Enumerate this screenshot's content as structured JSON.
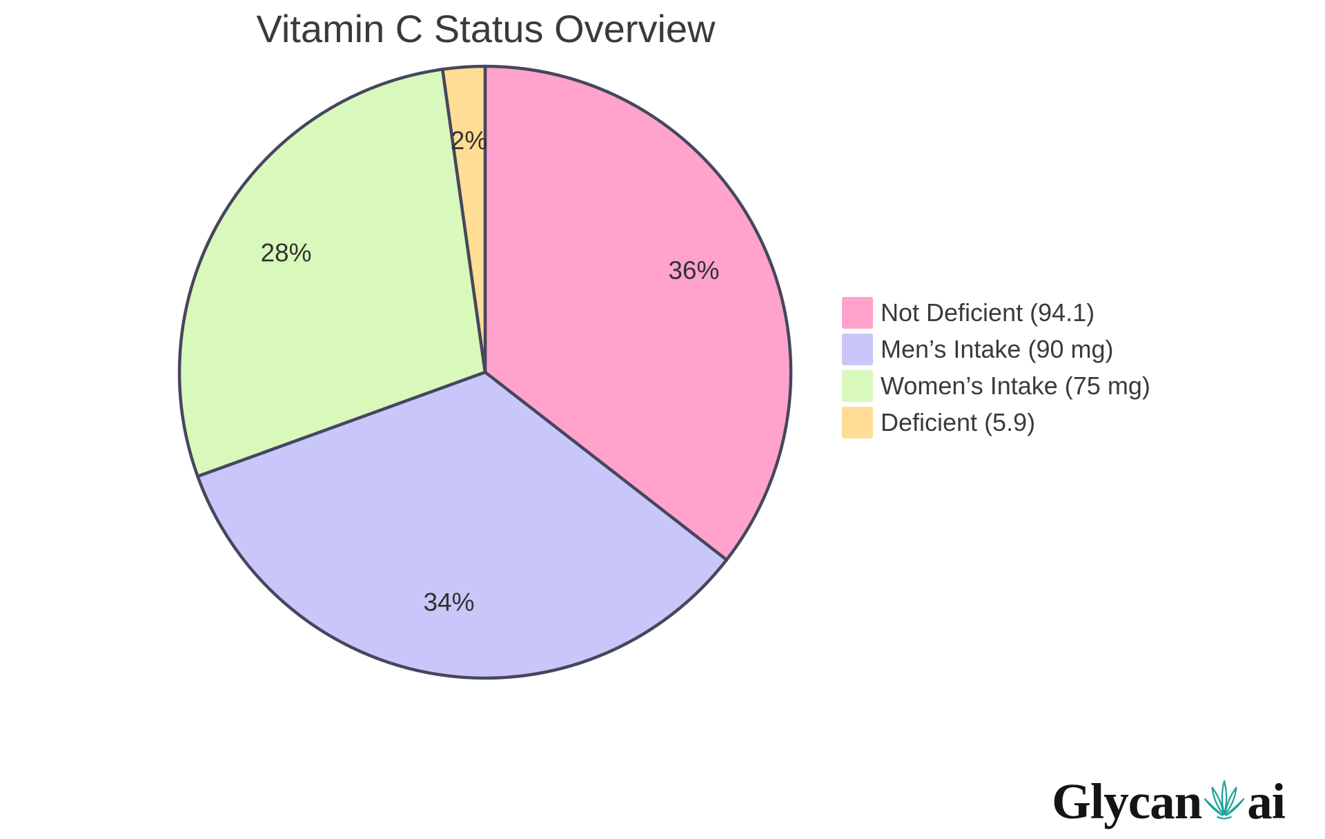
{
  "chart_data": {
    "type": "pie",
    "title": "Vitamin C Status Overview",
    "direction": "clockwise",
    "start_angle_deg": 0,
    "legend_position": "right",
    "slices": [
      {
        "name": "Not Deficient",
        "value": 94.1,
        "percent_label": "36%",
        "legend_label": "Not Deficient (94.1)",
        "color": "#FFA3CC"
      },
      {
        "name": "Men's Intake",
        "value": 90,
        "percent_label": "34%",
        "legend_label": "Men’s Intake (90 mg)",
        "color": "#C9C7F9"
      },
      {
        "name": "Women's Intake",
        "value": 75,
        "percent_label": "28%",
        "legend_label": "Women’s Intake (75 mg)",
        "color": "#D9F8BC"
      },
      {
        "name": "Deficient",
        "value": 5.9,
        "percent_label": "2%",
        "legend_label": "Deficient (5.9)",
        "color": "#FFDD94"
      }
    ],
    "style": {
      "stroke_color": "#46465E",
      "stroke_width": 4.5,
      "label_color": "#313131",
      "title_color": "#3A3A3A",
      "legend_text_color": "#3A3A3A"
    }
  },
  "branding": {
    "logo_left": "Glycan",
    "logo_right": "ai",
    "icon": "agave-plant-icon",
    "icon_color": "#1AA398",
    "text_color": "#141414"
  }
}
